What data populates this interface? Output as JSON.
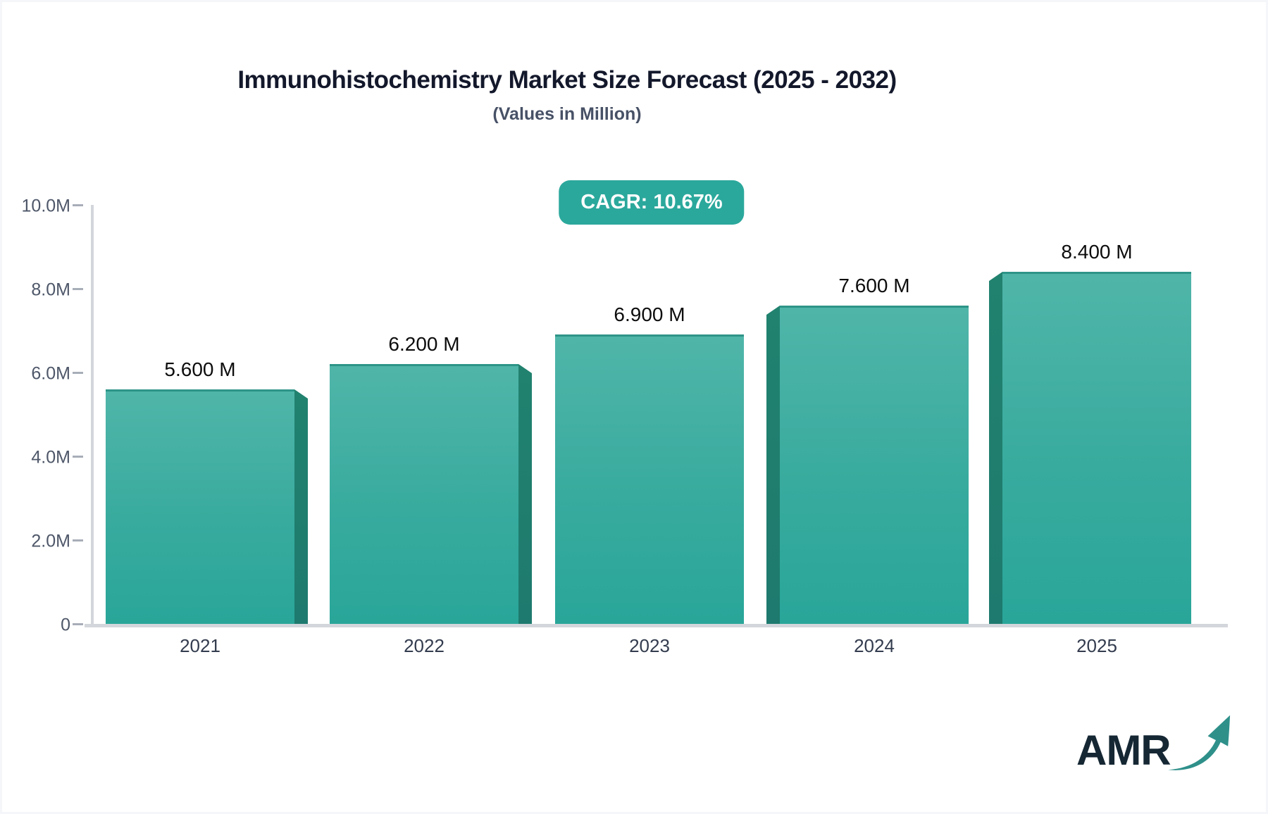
{
  "header": {
    "title": "Immunohistochemistry Market Size Forecast (2025 - 2032)",
    "subtitle": "(Values in Million)"
  },
  "badge": {
    "label": "CAGR: 10.67%"
  },
  "chart_data": {
    "type": "bar",
    "title": "Immunohistochemistry Market Size Forecast (2025 - 2032)",
    "subtitle": "(Values in Million)",
    "annotation": "CAGR: 10.67%",
    "categories": [
      "2021",
      "2022",
      "2023",
      "2024",
      "2025"
    ],
    "values": [
      5.6,
      6.2,
      6.9,
      7.6,
      8.4
    ],
    "value_labels": [
      "5.600 M",
      "6.200 M",
      "6.900 M",
      "7.600 M",
      "8.400 M"
    ],
    "unit": "Million",
    "ylim": [
      0,
      10
    ],
    "yticks": {
      "values": [
        0,
        2,
        4,
        6,
        8,
        10
      ],
      "labels": [
        "0",
        "2.0M",
        "4.0M",
        "6.0M",
        "8.0M",
        "10.0M"
      ]
    },
    "grid": false,
    "legend": false,
    "style": "3d-perspective-bars"
  },
  "colors": {
    "bar_face_top": "#50b5a9",
    "bar_face_bottom": "#29a699",
    "bar_side": "#1e7a6e",
    "bar_top_edge": "#2e9488",
    "badge_bg": "#2ba89c",
    "axis_line": "#d3d6db",
    "tick_dash": "#a8aeb8",
    "y_label": "#4e5769",
    "x_label": "#333c4e",
    "value_label": "#0d0d0d",
    "title": "#13182b",
    "subtitle": "#475166",
    "logo_text": "#152733",
    "logo_arrow": "#2f908a"
  },
  "logo": {
    "text": "AMR",
    "icon": "growth-arrow-icon"
  }
}
